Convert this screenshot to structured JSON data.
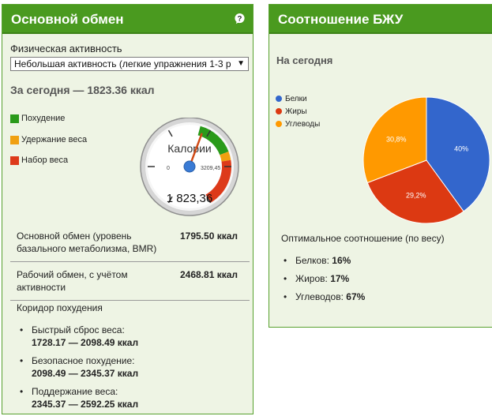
{
  "left": {
    "title": "Основной обмен",
    "activity_label": "Физическая активность",
    "activity_selected": "Небольшая активность (легкие упражнения 1-3 р",
    "today_text": "За сегодня — 1823.36 ккал",
    "legend": [
      {
        "label": "Похудение",
        "color": "#2a9a1a"
      },
      {
        "label": "Удержание веса",
        "color": "#f0a010"
      },
      {
        "label": "Набор веса",
        "color": "#dd3a1a"
      }
    ],
    "gauge": {
      "title": "Калории",
      "value_text": "1 823,36",
      "min_label": "0",
      "max_label": "3209,45",
      "value_fraction": 0.568
    },
    "rows": [
      {
        "label": "Основной обмен (уровень базального метаболизма, BMR)",
        "value": "1795.50 ккал"
      },
      {
        "label": "Рабочий обмен, с учётом активности",
        "value": "2468.81 ккал"
      }
    ],
    "corridor_title": "Коридор похудения",
    "corridor": [
      {
        "label": "Быстрый сброс веса:",
        "range": "1728.17 — 2098.49 ккал"
      },
      {
        "label": "Безопасное похудение:",
        "range": "2098.49 — 2345.37 ккал"
      },
      {
        "label": "Поддержание веса:",
        "range": "2345.37 — 2592.25 ккал"
      }
    ]
  },
  "right": {
    "title": "Соотношение БЖУ",
    "today_label": "На сегодня",
    "optimal_title": "Оптимальное соотношение (по весу)",
    "optimal": [
      {
        "label": "Белков:",
        "value": "16%"
      },
      {
        "label": "Жиров:",
        "value": "17%"
      },
      {
        "label": "Углеводов:",
        "value": "67%"
      }
    ]
  },
  "chart_data": {
    "type": "pie",
    "categories": [
      "Белки",
      "Жиры",
      "Углеводы"
    ],
    "values": [
      40,
      29.2,
      30.8
    ],
    "labels": [
      "40%",
      "29,2%",
      "30,8%"
    ],
    "colors": [
      "#3366cc",
      "#dc3912",
      "#ff9900"
    ],
    "legend_position": "left"
  }
}
